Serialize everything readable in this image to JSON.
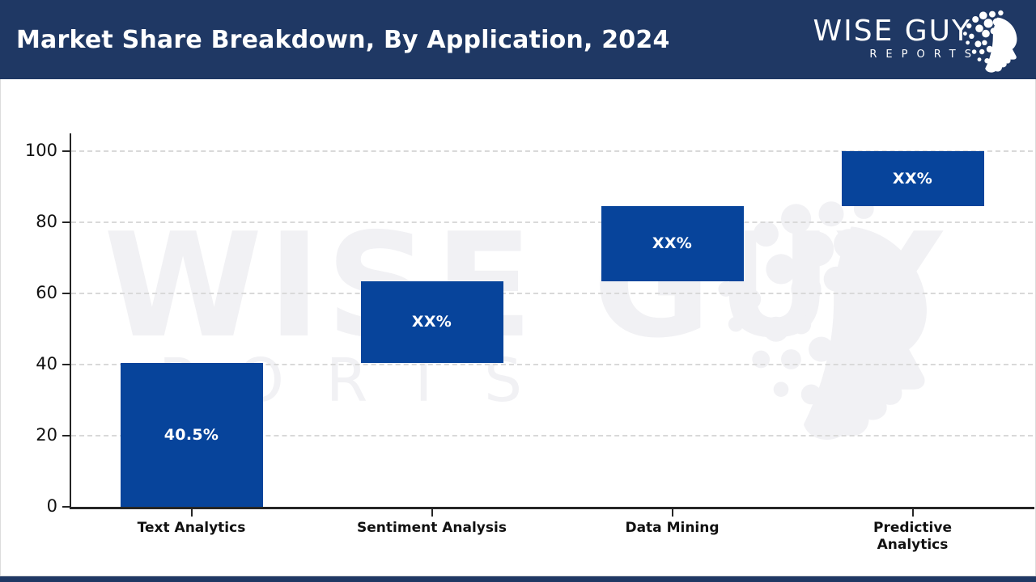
{
  "header": {
    "title": "Market Share Breakdown, By Application, 2024",
    "logo": {
      "brand": "WISE GUY",
      "sub": "REPORTS"
    }
  },
  "watermark": {
    "brand": "WISE GUY",
    "sub": "PORTS"
  },
  "chart_data": {
    "type": "bar",
    "subtype": "floating-segment-waterfall",
    "title": "Market Share Breakdown, By Application, 2024",
    "categories": [
      "Text Analytics",
      "Sentiment Analysis",
      "Data Mining",
      "Predictive\nAnalytics"
    ],
    "segments": [
      {
        "category": "Text Analytics",
        "start": 0,
        "end": 40.5,
        "label": "40.5%"
      },
      {
        "category": "Sentiment Analysis",
        "start": 40.5,
        "end": 63.5,
        "label": "XX%"
      },
      {
        "category": "Data Mining",
        "start": 63.5,
        "end": 84.5,
        "label": "XX%"
      },
      {
        "category": "Predictive Analytics",
        "start": 84.5,
        "end": 100,
        "label": "XX%"
      }
    ],
    "ylim": [
      0,
      100
    ],
    "yticks": [
      0,
      20,
      40,
      60,
      80,
      100
    ],
    "xlabel": "",
    "ylabel": "",
    "grid": "horizontal-dashed",
    "legend": "none",
    "bar_color": "#07449b",
    "bar_label_color": "#ffffff"
  },
  "colors": {
    "header_bg": "#1f3864",
    "footer_bg": "#1f3864",
    "axis": "#262626",
    "grid": "#d9d9d9",
    "watermark": "#f1f1f4"
  }
}
